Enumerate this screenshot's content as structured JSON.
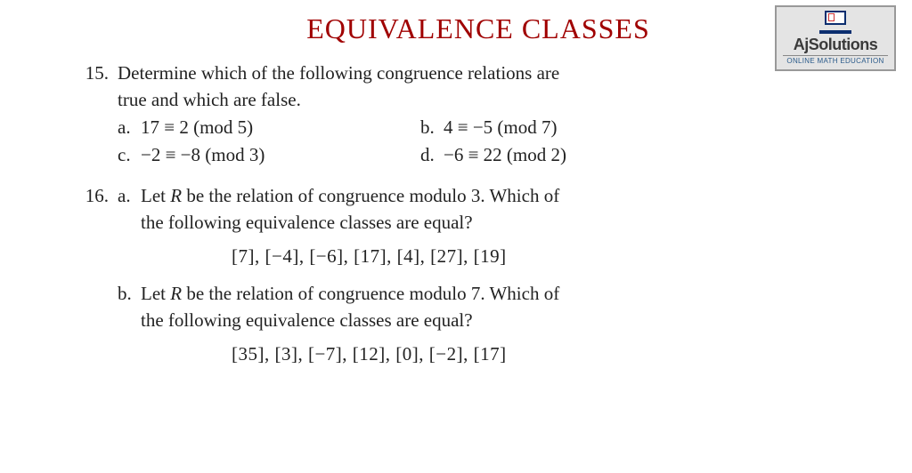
{
  "colors": {
    "title": "#a00000",
    "text": "#222222",
    "logo_border": "#999999",
    "logo_bg": "#e4e4e4",
    "logo_brand": "#3a3a3a",
    "logo_accent": "#0b2e6f"
  },
  "title": "EQUIVALENCE CLASSES",
  "logo": {
    "brand": "AjSolutions",
    "tagline": "ONLINE MATH EDUCATION"
  },
  "questions": [
    {
      "number": "15.",
      "prompt_lines": [
        "Determine which of the following congruence relations are",
        "true and which are false."
      ],
      "options": [
        {
          "letter": "a.",
          "text": "17 ≡ 2 (mod 5)"
        },
        {
          "letter": "b.",
          "text": "4 ≡ −5 (mod 7)"
        },
        {
          "letter": "c.",
          "text": "−2 ≡ −8 (mod 3)"
        },
        {
          "letter": "d.",
          "text": "−6 ≡ 22 (mod 2)"
        }
      ]
    },
    {
      "number": "16.",
      "prompt_lines": [],
      "subparts": [
        {
          "letter": "a.",
          "text_lines": [
            "Let R be the relation of congruence modulo 3. Which of",
            "the following equivalence classes are equal?"
          ],
          "classes": "[7], [−4], [−6], [17], [4], [27], [19]"
        },
        {
          "letter": "b.",
          "text_lines": [
            "Let R be the relation of congruence modulo 7. Which of",
            "the following equivalence classes are equal?"
          ],
          "classes": "[35], [3], [−7], [12], [0], [−2], [17]"
        }
      ]
    }
  ]
}
